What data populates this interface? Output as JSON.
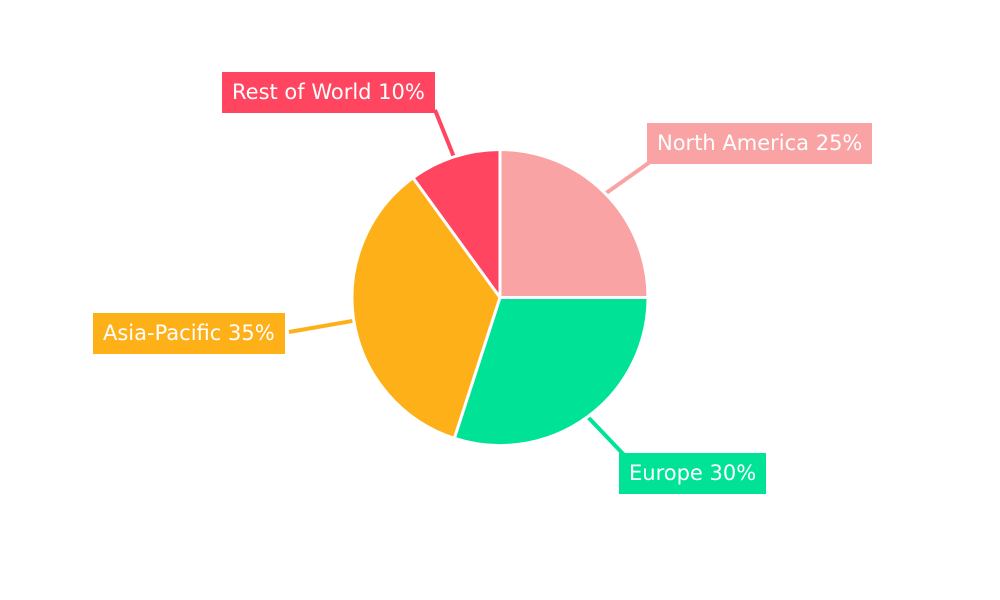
{
  "page": {
    "background": "#FFFFFF"
  },
  "chart_data": {
    "type": "pie",
    "categories": [
      "North America",
      "Europe",
      "Asia-Pacific",
      "Rest of World"
    ],
    "values": [
      25,
      30,
      35,
      10
    ],
    "unit": "%",
    "colors": [
      "#F9A3A4",
      "#00E396",
      "#FEB019",
      "#FF4560"
    ],
    "slice_labels": [
      "North America 25%",
      "Europe 30%",
      "Asia-Pacific 35%",
      "Rest of World 10%"
    ],
    "label_text_color": "#FFFFFF",
    "slice_border_color": "#FFFFFF",
    "legend_position": "none",
    "start_angle": "12-o-clock",
    "direction": "clockwise"
  }
}
